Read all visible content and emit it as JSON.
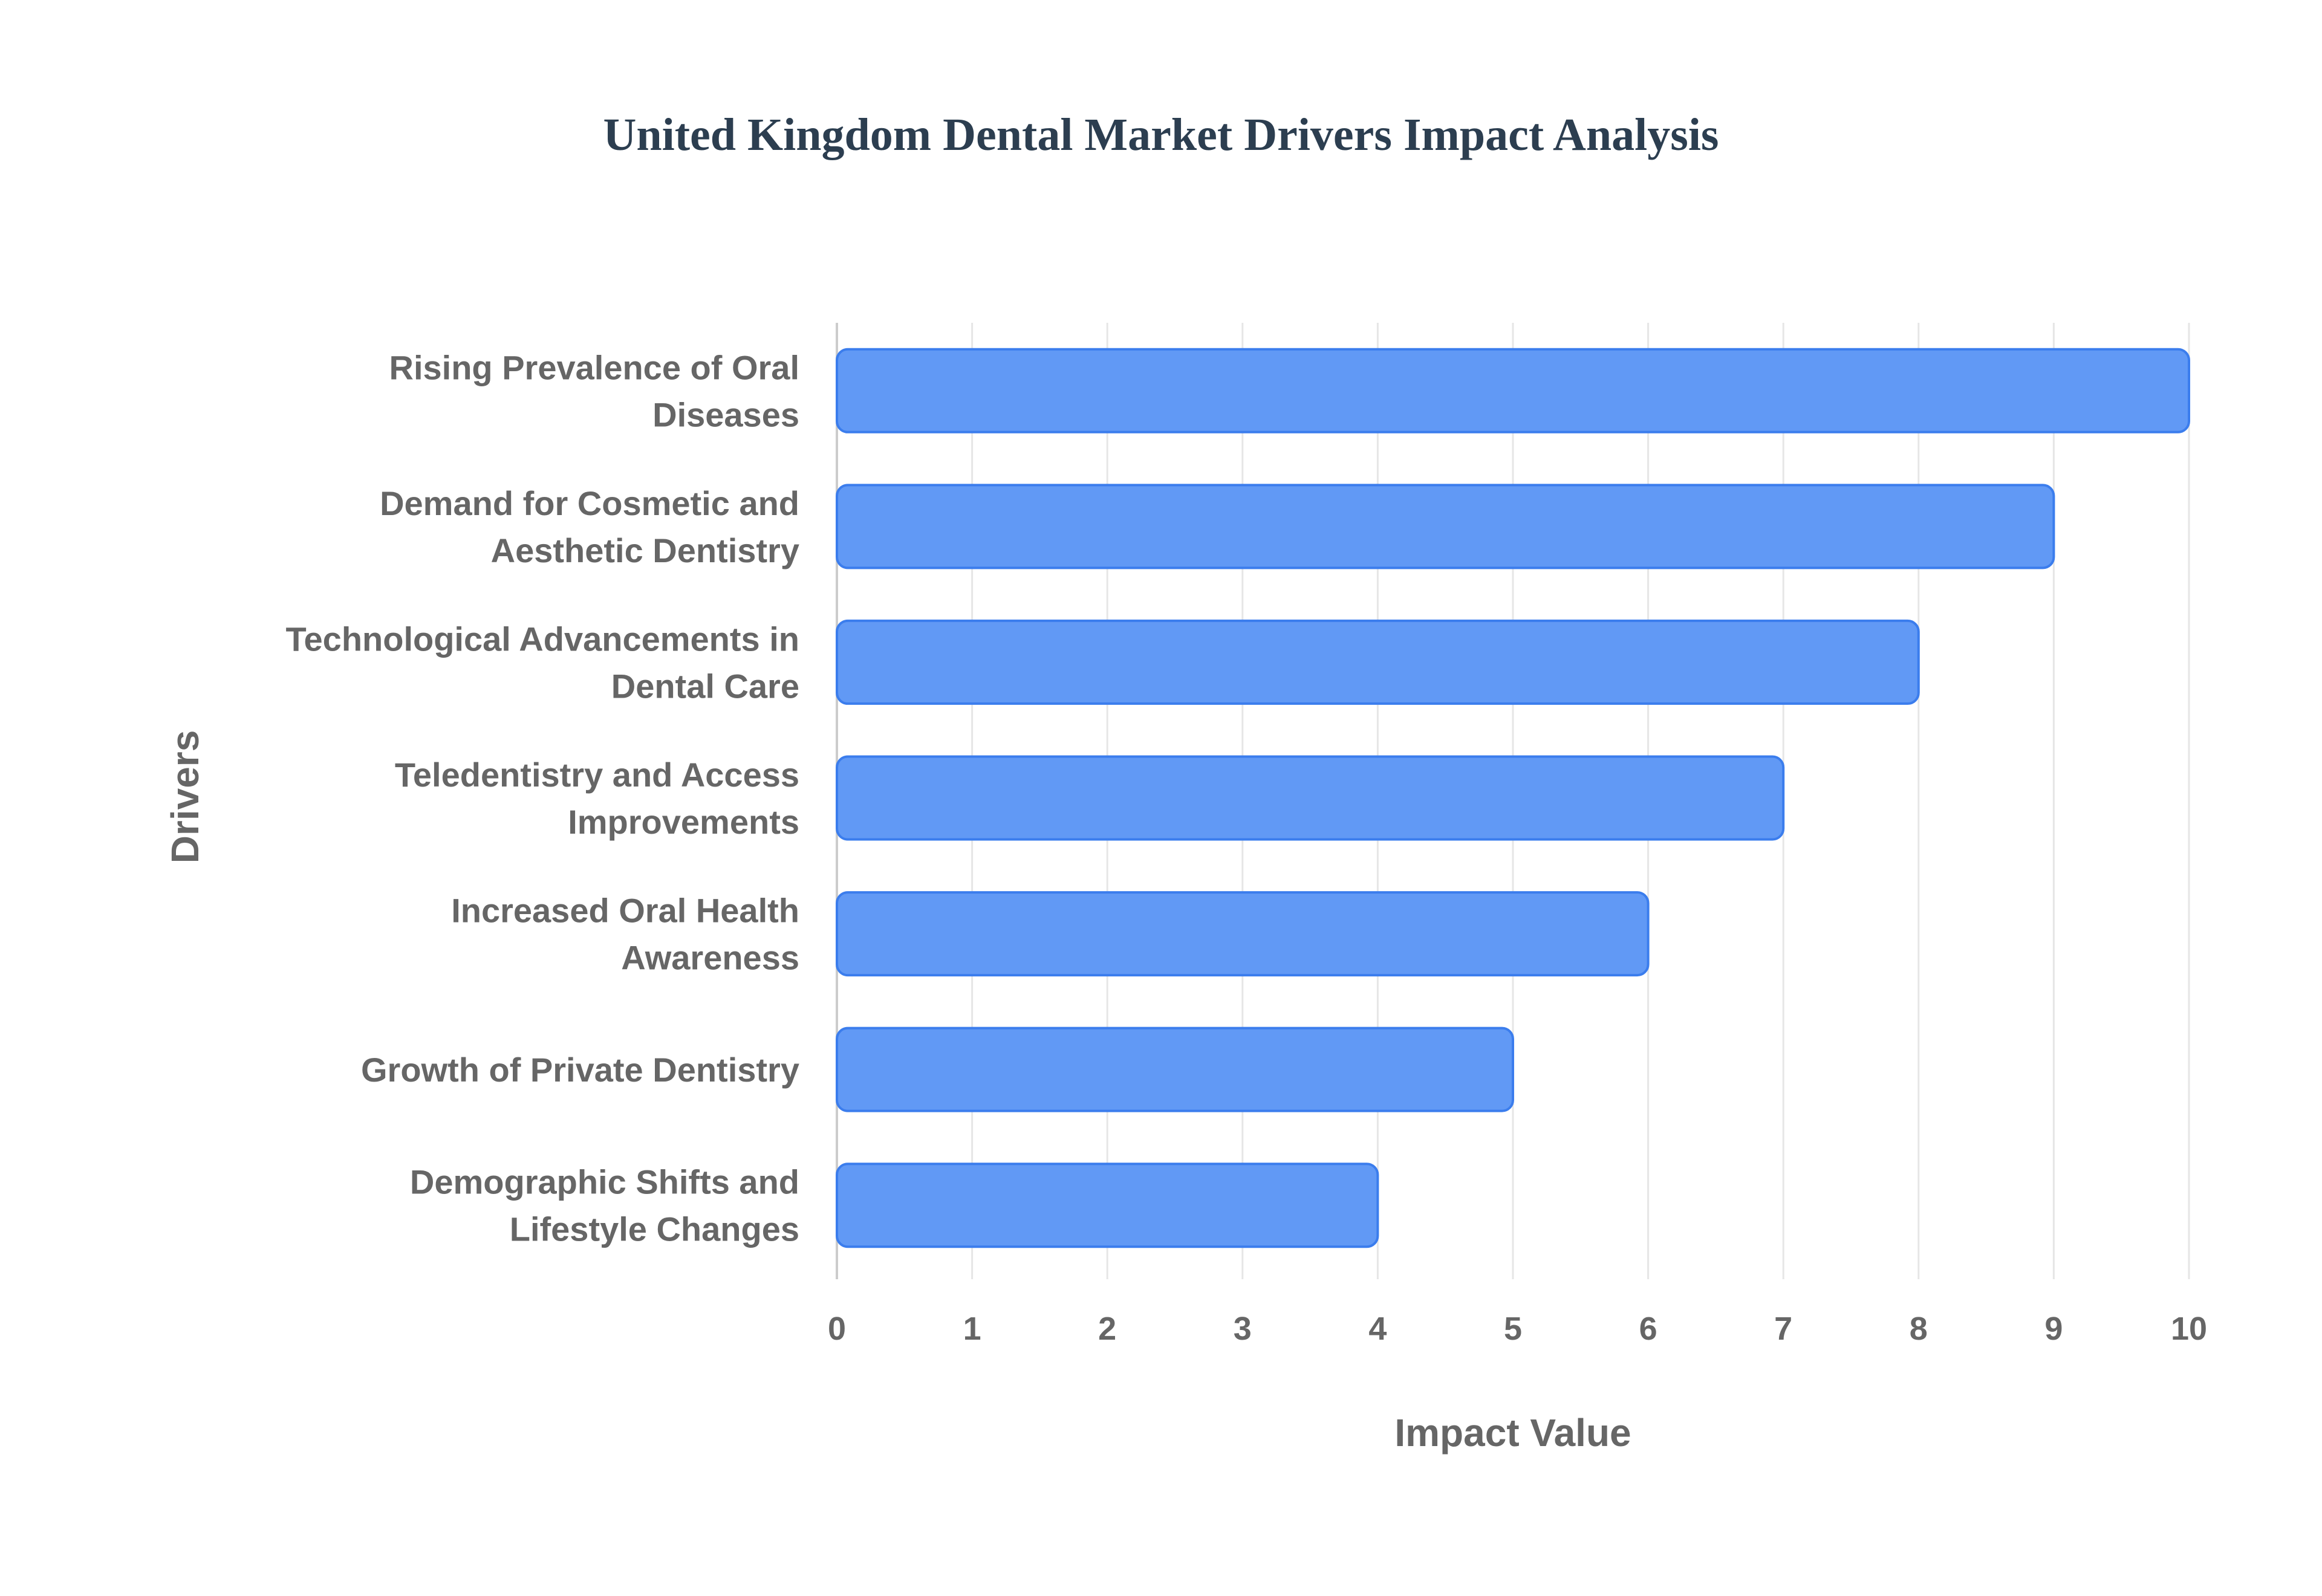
{
  "chart_data": {
    "type": "bar",
    "orientation": "horizontal",
    "title": "United Kingdom Dental Market Drivers Impact Analysis",
    "xlabel": "Impact Value",
    "ylabel": "Drivers",
    "xlim": [
      0,
      10
    ],
    "xticks": [
      "0",
      "1",
      "2",
      "3",
      "4",
      "5",
      "6",
      "7",
      "8",
      "9",
      "10"
    ],
    "grid": true,
    "categories": [
      [
        "Rising Prevalence of Oral",
        "Diseases"
      ],
      [
        "Demand for Cosmetic and",
        "Aesthetic Dentistry"
      ],
      [
        "Technological Advancements in",
        "Dental Care"
      ],
      [
        "Teledentistry and Access",
        "Improvements"
      ],
      [
        "Increased Oral Health",
        "Awareness"
      ],
      [
        "Growth of Private Dentistry"
      ],
      [
        "Demographic Shifts and",
        "Lifestyle Changes"
      ]
    ],
    "values": [
      10,
      9,
      8,
      7,
      6,
      5,
      4
    ],
    "bar_color": "#6199f5",
    "bar_border": "#3b7ded"
  }
}
